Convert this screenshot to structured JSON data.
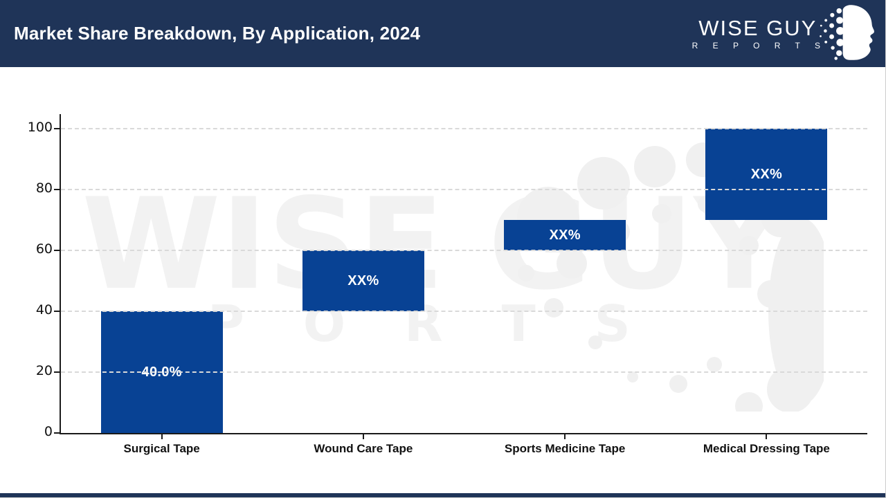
{
  "header": {
    "title": "Market Share Breakdown, By Application, 2024",
    "bg_color": "#1f3458",
    "logo": {
      "line1": "WISE GUY",
      "line2": "R E P O R T S"
    }
  },
  "watermark": {
    "line1": "WISE GUY",
    "line2": "P  O  R  T  S"
  },
  "chart_data": {
    "type": "bar",
    "subtype": "waterfall (floating segment bars)",
    "title": "Market Share Breakdown, By Application, 2024",
    "categories": [
      "Surgical Tape",
      "Wound Care Tape",
      "Sports Medicine Tape",
      "Medical Dressing Tape"
    ],
    "bars": [
      {
        "category": "Surgical Tape",
        "start": 0,
        "end": 40,
        "height": 40,
        "label": "40.0%"
      },
      {
        "category": "Wound Care Tape",
        "start": 40,
        "end": 60,
        "height": 20,
        "label": "XX%"
      },
      {
        "category": "Sports Medicine Tape",
        "start": 60,
        "end": 70,
        "height": 10,
        "label": "XX%"
      },
      {
        "category": "Medical Dressing Tape",
        "start": 70,
        "end": 100,
        "height": 30,
        "label": "XX%"
      }
    ],
    "yticks": [
      0,
      20,
      40,
      60,
      80,
      100
    ],
    "ylim": [
      0,
      100
    ],
    "xlabel": "",
    "ylabel": "",
    "grid": "horizontal dashed gridlines drawn over bars",
    "legend": "none",
    "bar_color": "#084294",
    "bar_label_color": "#ffffff",
    "axis_color": "#1a1a1a",
    "gridline_color": "#d9d9d9"
  },
  "footer": {
    "bg_color": "#1f3458"
  }
}
